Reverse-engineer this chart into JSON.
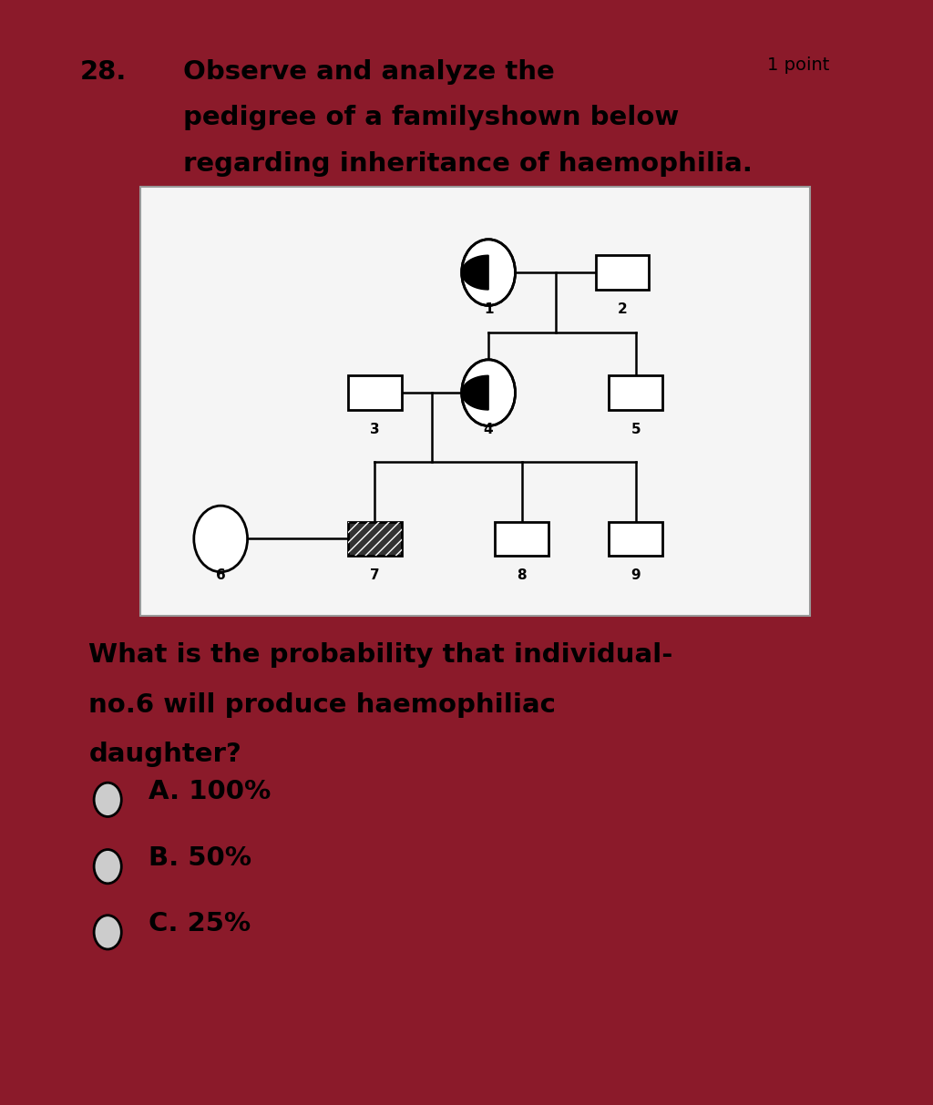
{
  "bg_outer": "#8B1A2A",
  "bg_card": "#CCCCCC",
  "bg_pedigree": "#F5F5F5",
  "title_num": "28.",
  "title_line1": "Observe and analyze the",
  "title_point": "1 point",
  "title_line2": "pedigree of a familyshown below",
  "title_line3": "regarding inheritance of haemophilia.",
  "question_line1": "What is the probability that individual-",
  "question_line2": "no.6 will produce haemophiliac",
  "question_line3": "daughter?",
  "option_A": "A. 100%",
  "option_B": "B. 50%",
  "option_C": "C. 25%",
  "title_fontsize": 21,
  "question_fontsize": 21,
  "option_fontsize": 21,
  "label_fontsize": 11,
  "point_fontsize": 14
}
